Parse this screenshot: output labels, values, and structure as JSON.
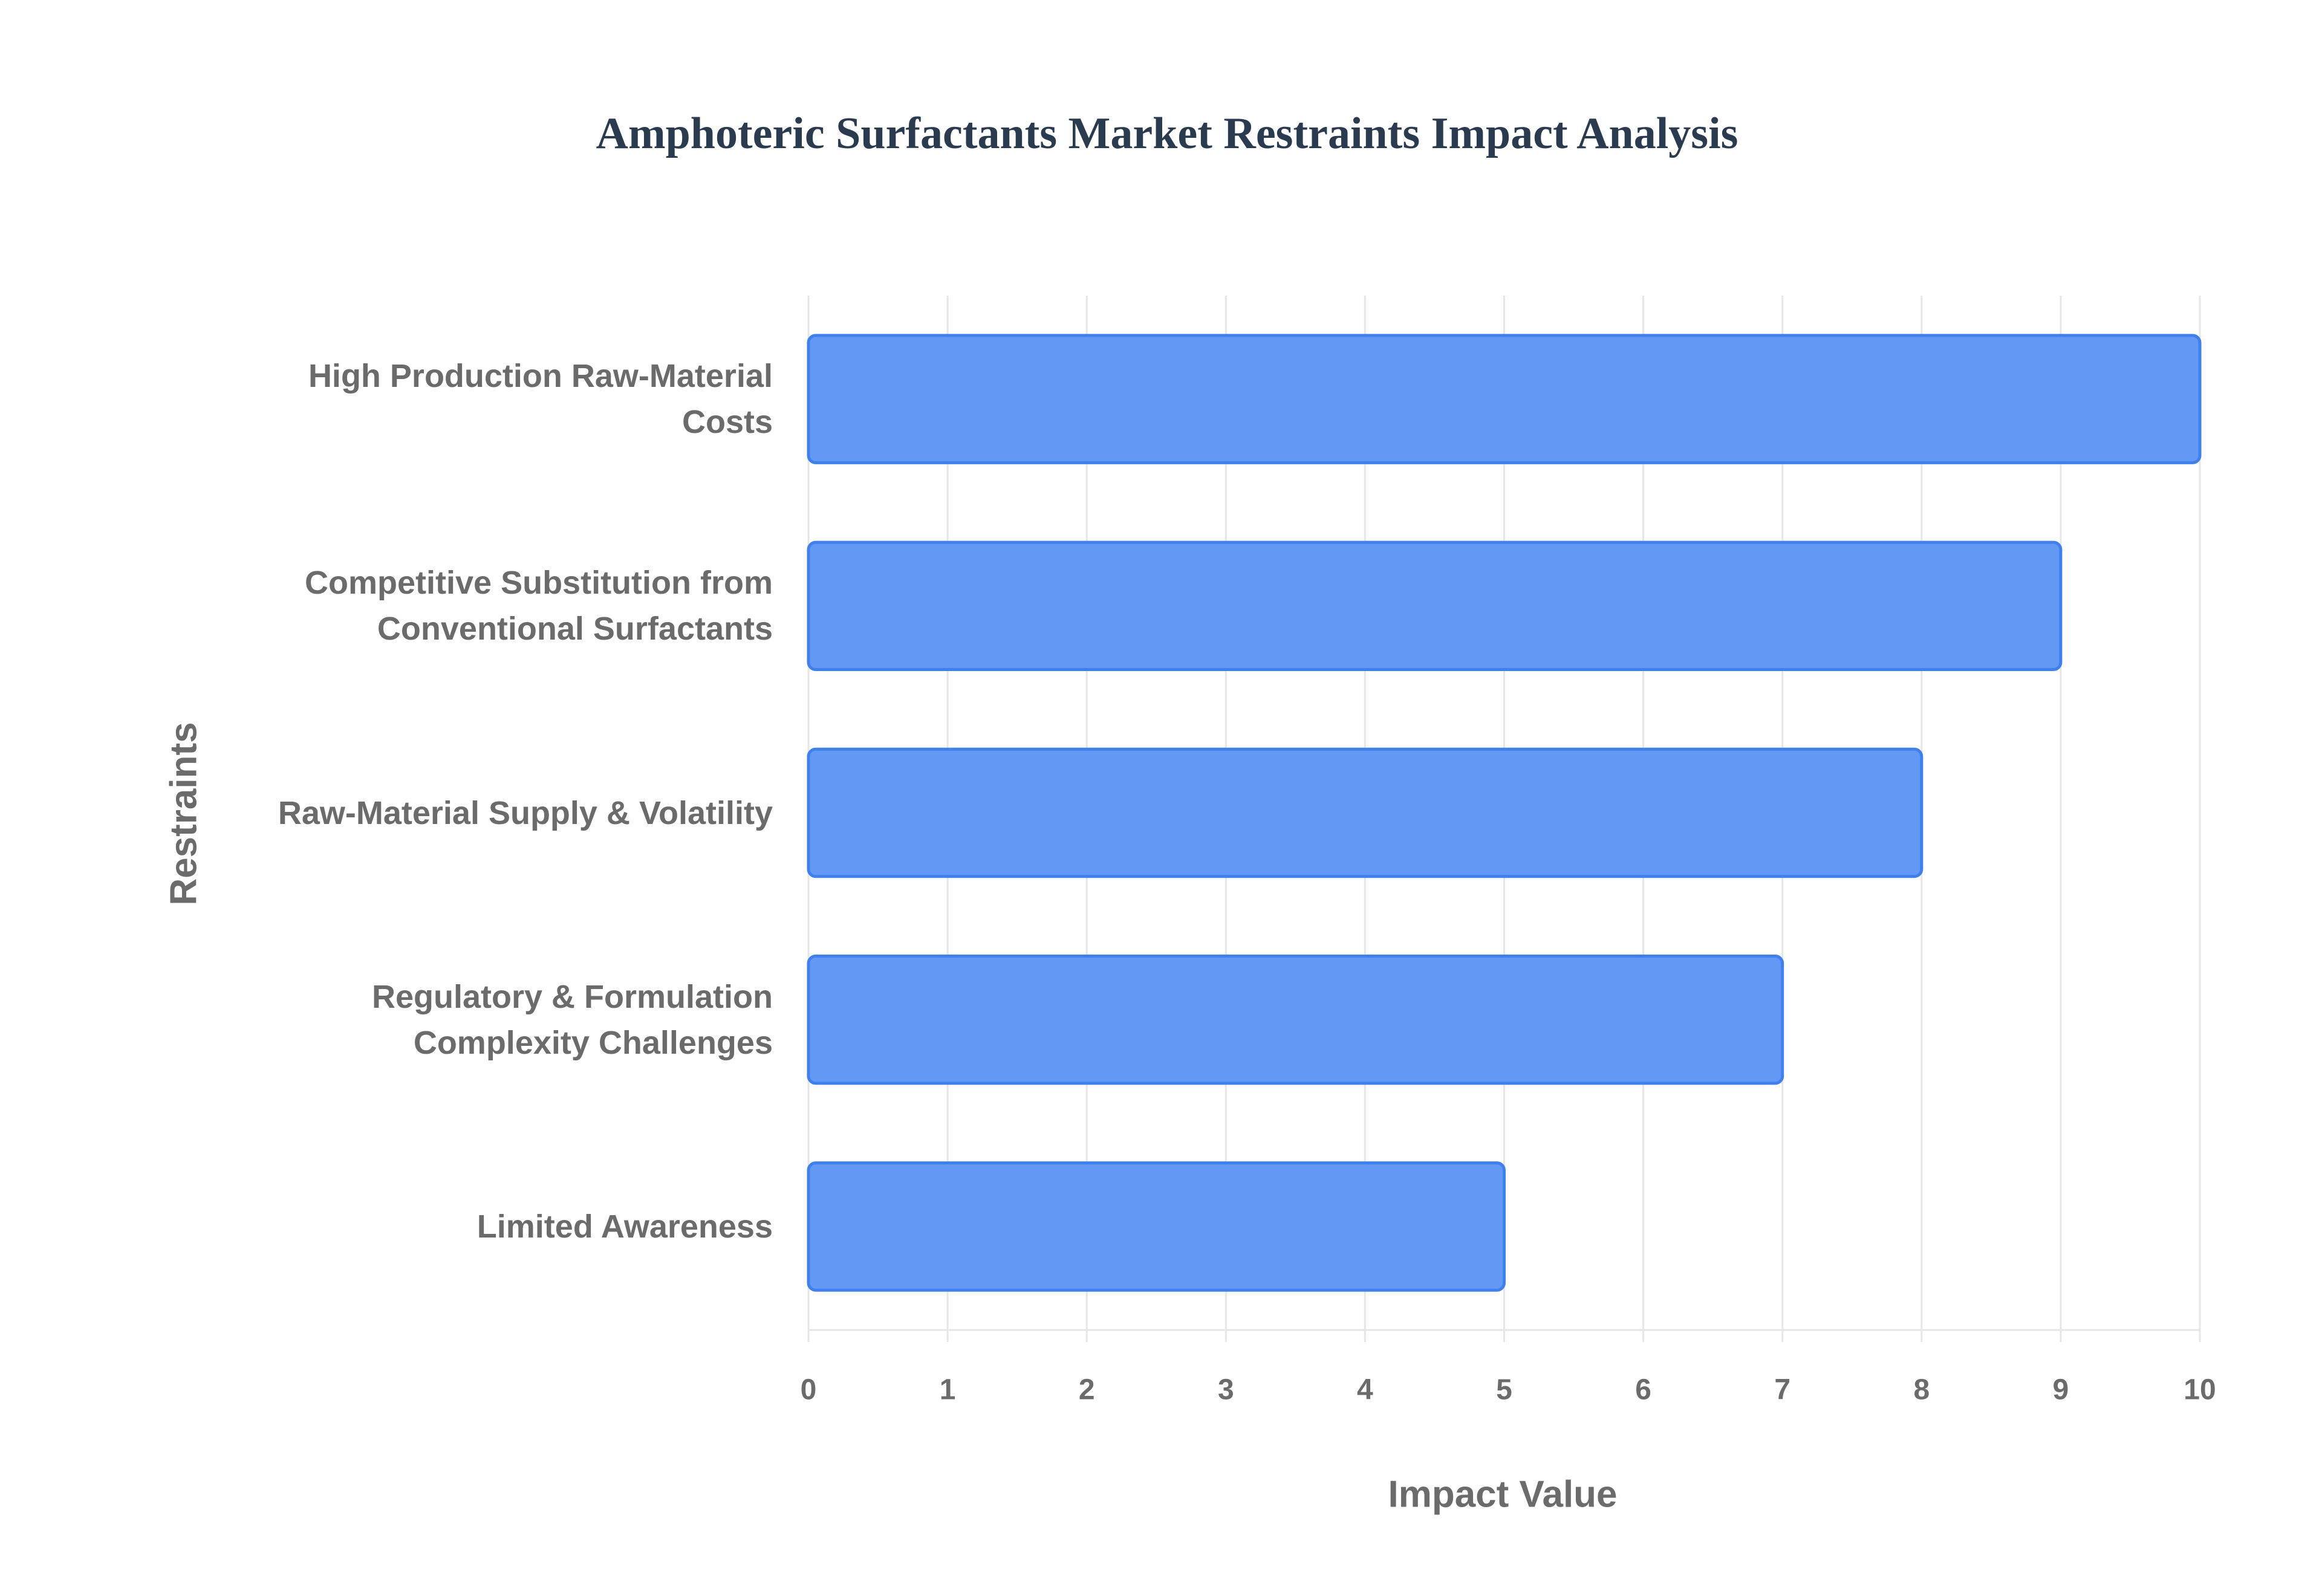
{
  "chart_data": {
    "type": "bar",
    "orientation": "horizontal",
    "title": "Amphoteric Surfactants Market Restraints Impact Analysis",
    "x_label": "Impact Value",
    "y_label": "Restraints",
    "categories": [
      "High Production Raw-Material Costs",
      "Competitive Substitution from Conventional Surfactants",
      "Raw-Material Supply & Volatility",
      "Regulatory & Formulation Complexity Challenges",
      "Limited Awareness"
    ],
    "values": [
      10,
      9,
      8,
      7,
      5
    ],
    "color": "#6399f5",
    "edge_color": "#3f80ec",
    "xlim": [
      0,
      10
    ],
    "xticks": [
      0,
      1,
      2,
      3,
      4,
      5,
      6,
      7,
      8,
      9,
      10
    ],
    "grid": true
  }
}
